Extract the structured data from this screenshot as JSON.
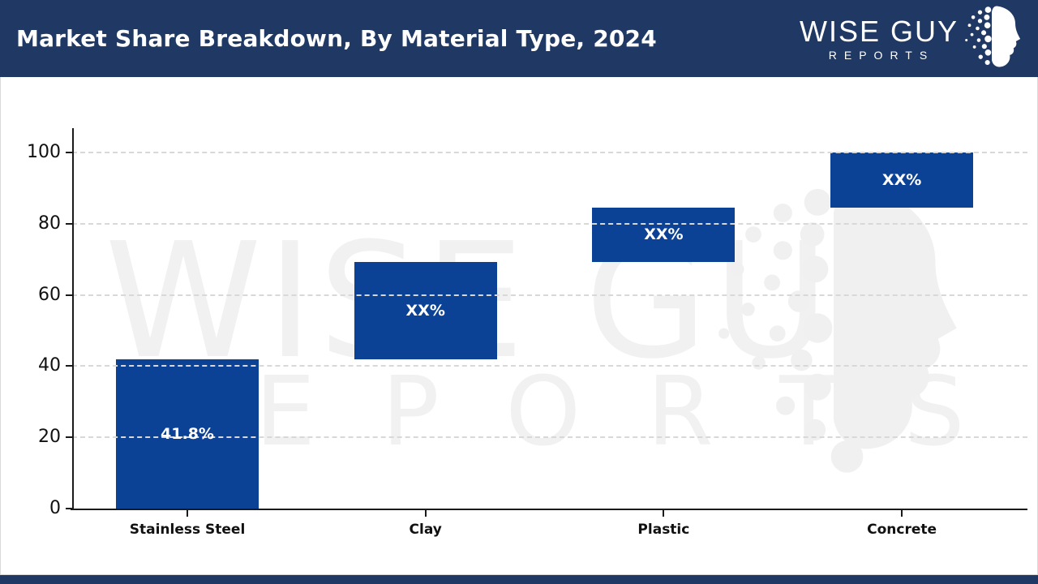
{
  "header": {
    "title": "Market Share Breakdown, By Material Type, 2024",
    "bg_color": "#203864",
    "logo": {
      "line1": "WISE GUY",
      "line2": "REPORTS"
    }
  },
  "watermark": {
    "line1": "WISE GUY",
    "line2": "R E P O R T S",
    "head_icon": "dotted-face-profile",
    "color": "#f1f1f1"
  },
  "footer": {
    "bg_color": "#203864"
  },
  "chart_data": {
    "type": "bar",
    "subtype": "floating-waterfall",
    "title": "Market Share Breakdown, By Material Type, 2024",
    "categories": [
      "Stainless Steel",
      "Clay",
      "Plastic",
      "Concrete"
    ],
    "segments": [
      {
        "category": "Stainless Steel",
        "start": 0,
        "end": 41.8,
        "label": "41.8%"
      },
      {
        "category": "Clay",
        "start": 41.8,
        "end": 69.3,
        "label": "XX%"
      },
      {
        "category": "Plastic",
        "start": 69.3,
        "end": 84.5,
        "label": "XX%"
      },
      {
        "category": "Concrete",
        "start": 84.5,
        "end": 100,
        "label": "XX%"
      }
    ],
    "bar_color": "#0b4296",
    "bar_label_color": "#ffffff",
    "yticks": [
      0,
      20,
      40,
      60,
      80,
      100
    ],
    "ylim": [
      0,
      100
    ],
    "xlabel": "",
    "ylabel": "",
    "grid": "horizontal-dashed",
    "gridline_color": "#d8d8d8",
    "axis_color": "#1a1a1a",
    "legend": null
  }
}
